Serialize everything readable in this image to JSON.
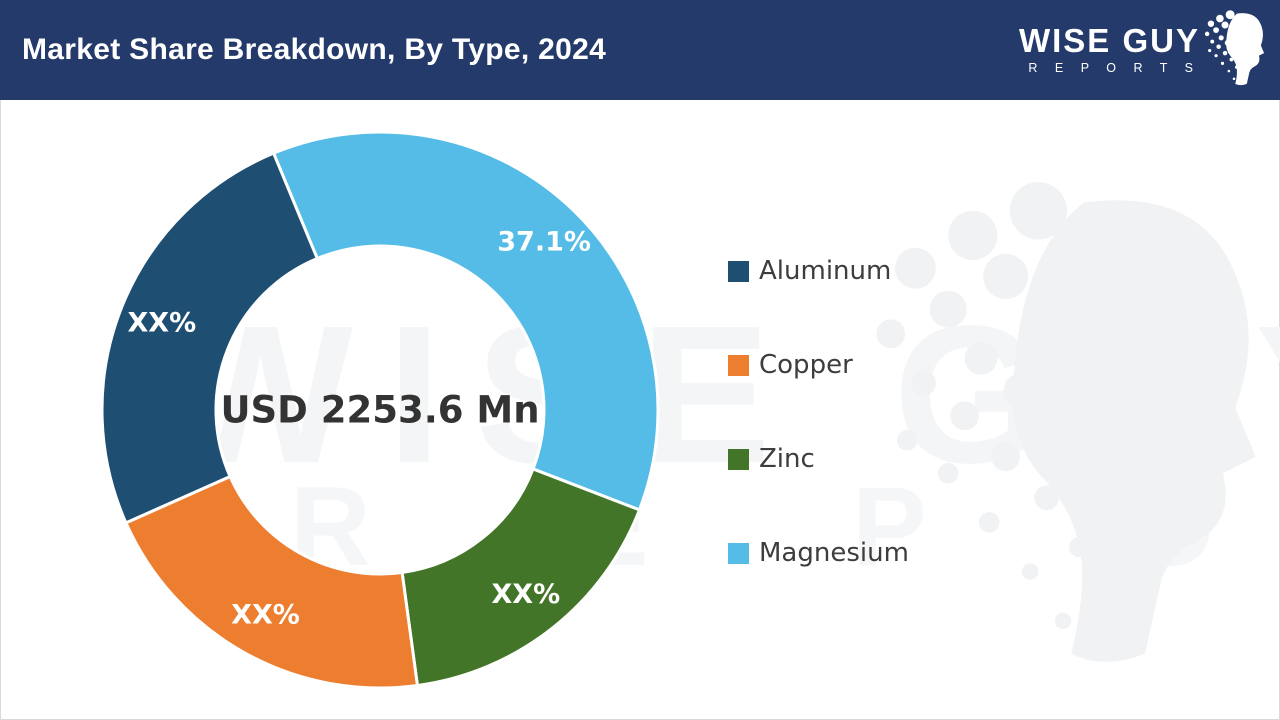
{
  "header": {
    "logo_line1": "WISE GUY",
    "logo_line2": "R E P O R T S"
  },
  "watermark": {
    "line1": "WISE GUY",
    "line2": "R E P O R T S"
  },
  "colors": {
    "header_bg": "#233a6b",
    "body_border": "#d9d9d9",
    "center_text": "#333333",
    "legend_text": "#3d3d3d",
    "slice_label_text": "#ffffff"
  },
  "chart_data": {
    "type": "pie",
    "subtype": "donut",
    "title": "Market Share Breakdown, By Type, 2024",
    "center_label": "USD 2253.6 Mn",
    "start_angle_deg": -22.5,
    "direction": "clockwise",
    "legend_position": "right",
    "inner_radius_ratio": 0.59,
    "segments": [
      {
        "name": "Magnesium",
        "value": 37.1,
        "label": "37.1%",
        "color": "#54bce6"
      },
      {
        "name": "Zinc",
        "value": 17.0,
        "label": "XX%",
        "color": "#427527"
      },
      {
        "name": "Copper",
        "value": 20.5,
        "label": "XX%",
        "color": "#ed7d2f"
      },
      {
        "name": "Aluminum",
        "value": 25.4,
        "label": "XX%",
        "color": "#1f4e73"
      }
    ],
    "legend_order": [
      "Aluminum",
      "Copper",
      "Zinc",
      "Magnesium"
    ]
  }
}
